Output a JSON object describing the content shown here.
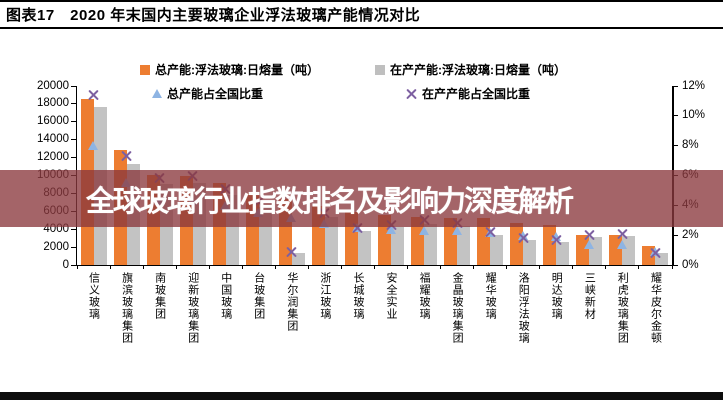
{
  "header": {
    "title": "图表17　2020 年末国内主要玻璃企业浮法玻璃产能情况对比"
  },
  "overlay": {
    "text": "全球玻璃行业指数排名及影响力深度解析"
  },
  "legend": {
    "total_bar": "总产能:浮法玻璃:日熔量（吨）",
    "active_bar": "在产产能:浮法玻璃:日熔量（吨）",
    "total_share": "总产能占全国比重",
    "active_share": "在产产能占全国比重"
  },
  "colors": {
    "total_bar": "#ED7D31",
    "active_bar": "#C3C3C3",
    "total_share_marker": "#8EB4E3",
    "active_share_marker": "#7D60A1",
    "banner": "#8B393E",
    "axis": "#000000"
  },
  "chart_data": {
    "type": "bar",
    "title": "2020 年末国内主要玻璃企业浮法玻璃产能情况对比",
    "categories": [
      "信义玻璃",
      "旗滨玻璃集团",
      "南玻集团",
      "迎新玻璃集团",
      "中国玻璃",
      "台玻集团",
      "华尔润集团",
      "浙江玻璃",
      "长城玻璃",
      "安全实业",
      "福耀玻璃",
      "金晶玻璃集团",
      "耀华玻璃",
      "洛阳浮法玻璃",
      "明达玻璃",
      "三峡新材",
      "利虎玻璃集团",
      "耀华皮尔金顿"
    ],
    "series": [
      {
        "name": "总产能:浮法玻璃:日熔量（吨）",
        "type": "bar",
        "axis": "left",
        "color": "#ED7D31",
        "values": [
          18600,
          12800,
          10100,
          10000,
          9200,
          8100,
          7400,
          6600,
          5900,
          5600,
          5400,
          5300,
          5200,
          4700,
          4500,
          3300,
          3300,
          2100
        ]
      },
      {
        "name": "在产产能:浮法玻璃:日熔量（吨）",
        "type": "bar",
        "axis": "left",
        "color": "#C3C3C3",
        "values": [
          17600,
          11300,
          9000,
          9200,
          7800,
          6500,
          1300,
          5400,
          3800,
          4200,
          4600,
          4400,
          3400,
          2800,
          2600,
          3100,
          3200,
          1300
        ]
      },
      {
        "name": "总产能占全国比重",
        "type": "scatter-triangle",
        "axis": "right",
        "color": "#8EB4E3",
        "values": [
          8.0,
          5.5,
          4.3,
          4.3,
          4.0,
          3.5,
          3.2,
          2.8,
          2.5,
          2.4,
          2.3,
          2.3,
          2.2,
          2.0,
          1.9,
          1.4,
          1.4,
          0.9
        ]
      },
      {
        "name": "在产产能占全国比重",
        "type": "scatter-x",
        "axis": "right",
        "color": "#7D60A1",
        "values": [
          11.4,
          7.3,
          5.8,
          6.0,
          5.1,
          4.2,
          0.9,
          3.5,
          2.5,
          2.7,
          3.0,
          2.8,
          2.2,
          1.8,
          1.7,
          2.0,
          2.1,
          0.8
        ]
      }
    ],
    "left_axis": {
      "label": "日熔量（吨）",
      "min": 0,
      "max": 20000,
      "step": 2000,
      "ticks": [
        "0",
        "2000",
        "4000",
        "6000",
        "8000",
        "10000",
        "12000",
        "14000",
        "16000",
        "18000",
        "20000"
      ]
    },
    "right_axis": {
      "label": "占全国比重",
      "min": 0,
      "max": 12,
      "step": 2,
      "ticks": [
        "0%",
        "2%",
        "4%",
        "6%",
        "8%",
        "10%",
        "12%"
      ]
    },
    "legend_position": "top",
    "grid": false
  }
}
